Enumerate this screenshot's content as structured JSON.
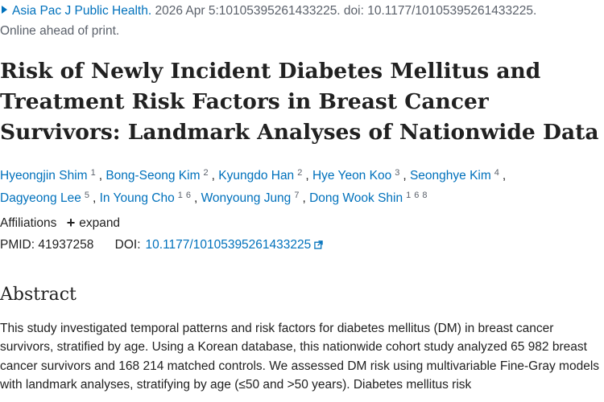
{
  "citation": {
    "journal": "Asia Pac J Public Health.",
    "details": " 2026 Apr 5:10105395261433225. doi: 10.1177/10105395261433225.",
    "status": "Online ahead of print."
  },
  "article": {
    "title": "Risk of Newly Incident Diabetes Mellitus and Treatment Risk Factors in Breast Cancer Survivors: Landmark Analyses of Nationwide Data"
  },
  "authors": [
    {
      "name": "Hyeongjin Shim",
      "affils": [
        "1"
      ]
    },
    {
      "name": "Bong-Seong Kim",
      "affils": [
        "2"
      ]
    },
    {
      "name": "Kyungdo Han",
      "affils": [
        "2"
      ]
    },
    {
      "name": "Hye Yeon Koo",
      "affils": [
        "3"
      ]
    },
    {
      "name": "Seonghye Kim",
      "affils": [
        "4"
      ]
    },
    {
      "name": "Dagyeong Lee",
      "affils": [
        "5"
      ]
    },
    {
      "name": "In Young Cho",
      "affils": [
        "1",
        "6"
      ]
    },
    {
      "name": "Wonyoung Jung",
      "affils": [
        "7"
      ]
    },
    {
      "name": "Dong Wook Shin",
      "affils": [
        "1",
        "6",
        "8"
      ]
    }
  ],
  "affiliations": {
    "label": "Affiliations",
    "expand_label": "expand"
  },
  "identifiers": {
    "pmid_label": "PMID:",
    "pmid": "41937258",
    "doi_label": "DOI:",
    "doi": "10.1177/10105395261433225"
  },
  "abstract": {
    "heading": "Abstract",
    "text": "This study investigated temporal patterns and risk factors for diabetes mellitus (DM) in breast cancer survivors, stratified by age. Using a Korean database, this nationwide cohort study analyzed 65 982 breast cancer survivors and 168 214 matched controls. We assessed DM risk using multivariable Fine-Gray models with landmark analyses, stratifying by age (≤50 and >50 years). Diabetes mellitus risk"
  },
  "icons": {
    "journal": "triangle-right-icon",
    "expand": "plus-icon",
    "doi": "external-link-icon"
  },
  "colors": {
    "link": "#0071bc",
    "text": "#212121",
    "muted": "#5b616b"
  }
}
